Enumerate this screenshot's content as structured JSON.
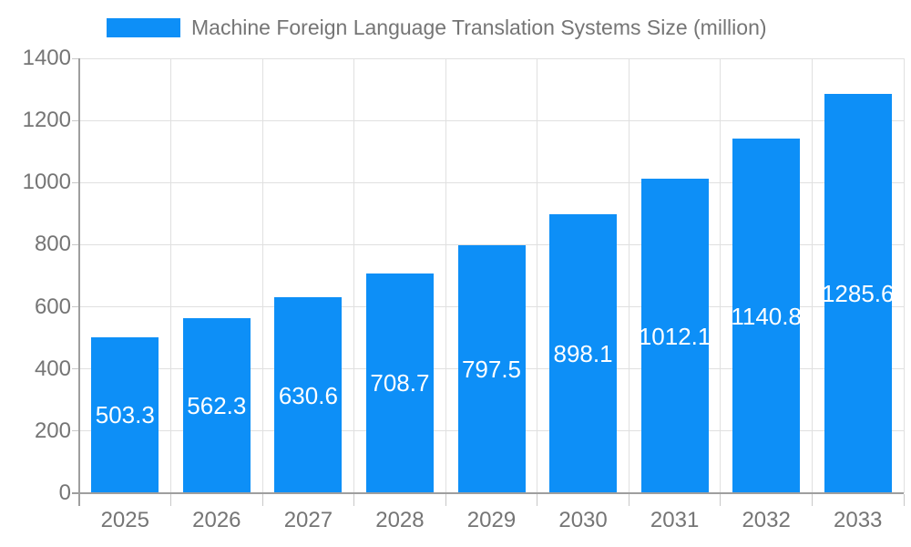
{
  "legend": {
    "label": "Machine Foreign Language Translation Systems Size (million)"
  },
  "chart_data": {
    "type": "bar",
    "title": "Machine Foreign Language Translation Systems Size (million)",
    "categories": [
      "2025",
      "2026",
      "2027",
      "2028",
      "2029",
      "2030",
      "2031",
      "2032",
      "2033"
    ],
    "values": [
      503.3,
      562.3,
      630.6,
      708.7,
      797.5,
      898.1,
      1012.1,
      1140.8,
      1285.6
    ],
    "xlabel": "",
    "ylabel": "",
    "ylim": [
      0,
      1400
    ],
    "yticks": [
      0,
      200,
      400,
      600,
      800,
      1000,
      1200,
      1400
    ],
    "grid": true,
    "legend_position": "top",
    "bar_color": "#0d8ff7",
    "value_label_color": "#ffffff",
    "axis_color": "#9e9e9e",
    "grid_color": "#e0e0e0",
    "tick_color": "#c8c8c8",
    "text_color": "#757575",
    "background_color": "#ffffff"
  }
}
